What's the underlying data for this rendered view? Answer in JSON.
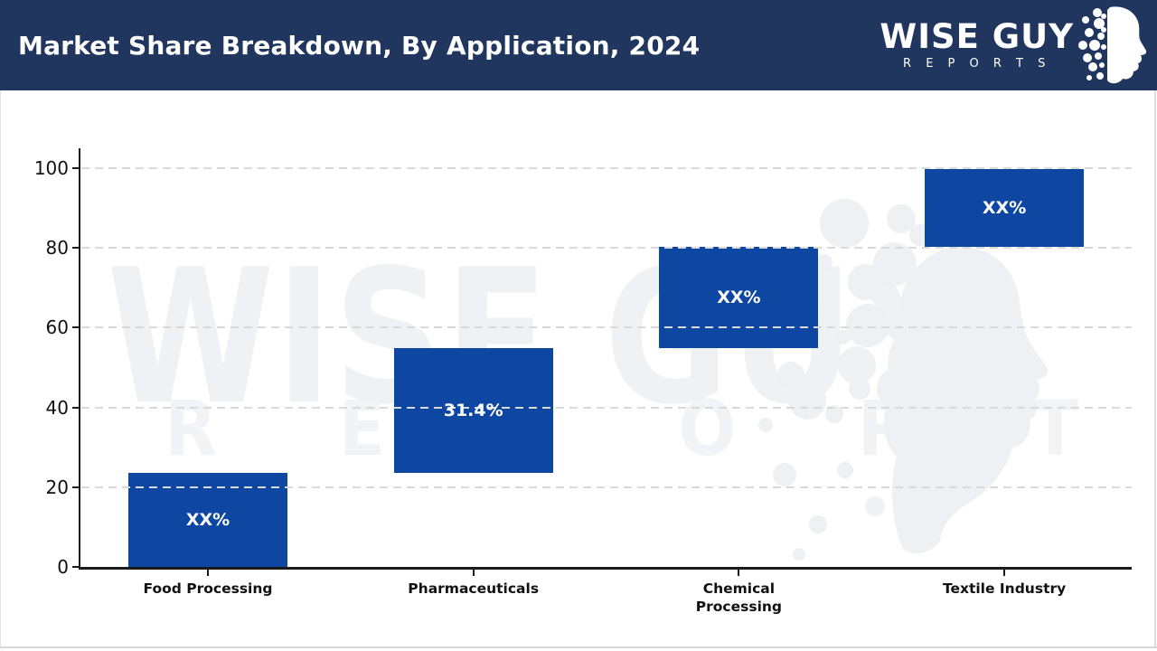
{
  "header": {
    "title": "Market Share Breakdown, By Application, 2024",
    "logo_line1": "WISE GUY",
    "logo_line2": "R E P O R T S"
  },
  "watermark": {
    "line1": "WISE GUY",
    "line2": "R E P O R T S"
  },
  "chart_data": {
    "type": "bar",
    "variant": "waterfall",
    "title": "Market Share Breakdown, By Application, 2024",
    "categories": [
      "Food Processing",
      "Pharmaceuticals",
      "Chemical\nProcessing",
      "Textile Industry"
    ],
    "segments": [
      {
        "category": "Food Processing",
        "start": 0,
        "end": 23.5,
        "label": "XX%"
      },
      {
        "category": "Pharmaceuticals",
        "start": 23.5,
        "end": 54.9,
        "label": "31.4%"
      },
      {
        "category": "Chemical Processing",
        "start": 54.9,
        "end": 80.3,
        "label": "XX%"
      },
      {
        "category": "Textile Industry",
        "start": 80.3,
        "end": 99.8,
        "label": "XX%"
      }
    ],
    "yticks": [
      0,
      20,
      40,
      60,
      80,
      100
    ],
    "ylim": [
      0,
      105
    ],
    "xlabel": "",
    "ylabel": "",
    "grid": "dashed-horizontal",
    "legend": false
  },
  "colors": {
    "header_bg": "#20365f",
    "bar": "#0d47a1",
    "bar_label": "#ffffff",
    "grid": "#d9d9d9",
    "axis": "#1a1a1a",
    "watermark": "#eef0f3"
  }
}
